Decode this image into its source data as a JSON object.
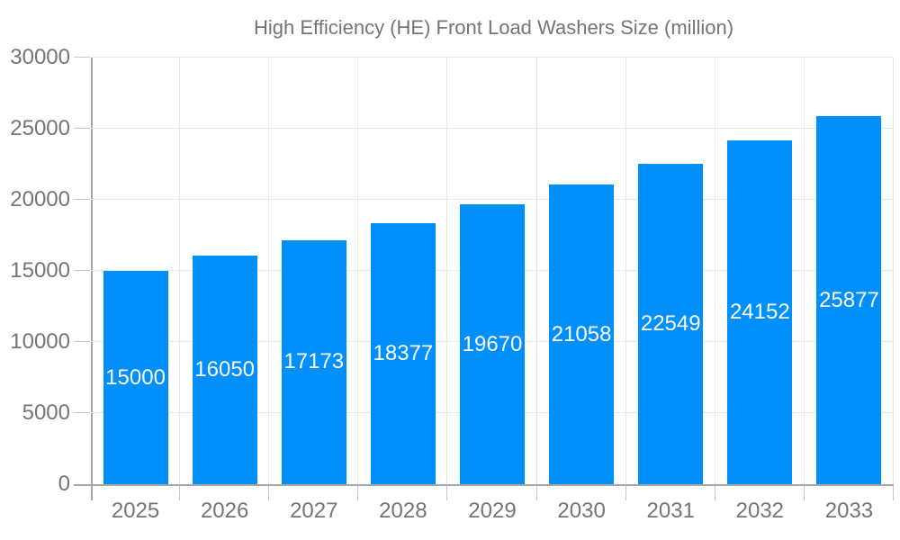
{
  "chart_data": {
    "type": "bar",
    "title": "",
    "categories": [
      "2025",
      "2026",
      "2027",
      "2028",
      "2029",
      "2030",
      "2031",
      "2032",
      "2033"
    ],
    "series": [
      {
        "name": "High Efficiency (HE) Front Load Washers Size (million)",
        "values": [
          15000,
          16050,
          17173,
          18377,
          19670,
          21058,
          22549,
          24152,
          25877
        ]
      }
    ],
    "bar_value_labels": [
      "15000",
      "16050",
      "17173",
      "18377",
      "19670",
      "21058",
      "22549",
      "24152",
      "25877"
    ],
    "xlabel": "",
    "ylabel": "",
    "ylim": [
      0,
      30000
    ],
    "yticks": [
      0,
      5000,
      10000,
      15000,
      20000,
      25000,
      30000
    ],
    "ytick_labels": [
      "0",
      "5000",
      "10000",
      "15000",
      "20000",
      "25000",
      "30000"
    ],
    "grid": true,
    "legend": {
      "position": "top",
      "label": "High Efficiency (HE) Front Load Washers Size (million)"
    },
    "colors": {
      "bar": "#008FFB",
      "bar_value_label": "#ffffff",
      "axis_label": "#757575",
      "legend_text": "#757575",
      "gridline": "#e6e6e6",
      "axis_line": "#a6a6a6",
      "tick": "#c6c6c6",
      "background": "#ffffff"
    }
  }
}
